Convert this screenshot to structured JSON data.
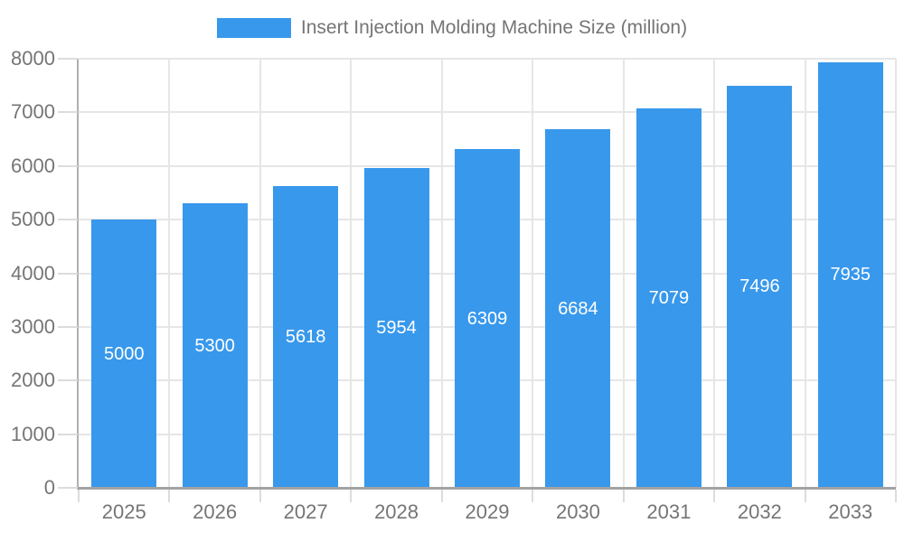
{
  "chart_data": {
    "type": "bar",
    "title": "",
    "categories": [
      "2025",
      "2026",
      "2027",
      "2028",
      "2029",
      "2030",
      "2031",
      "2032",
      "2033"
    ],
    "series": [
      {
        "name": "Insert Injection Molding Machine Size (million)",
        "values": [
          5000,
          5300,
          5618,
          5954,
          6309,
          6684,
          7079,
          7496,
          7935
        ]
      }
    ],
    "value_labels": [
      "5000",
      "5300",
      "5618",
      "5954",
      "6309",
      "6684",
      "7079",
      "7496",
      "7935"
    ],
    "xlabel": "",
    "ylabel": "",
    "ylim": [
      0,
      8000
    ],
    "ytick_step": 1000,
    "yticks": [
      "0",
      "1000",
      "2000",
      "3000",
      "4000",
      "5000",
      "6000",
      "7000",
      "8000"
    ],
    "grid": "both",
    "legend_position": "top-center",
    "colors": {
      "bar": "#3898EC",
      "grid_line": "#E6E6E6",
      "tick_line": "#DCDCDC",
      "axis_line_y": "#B0B0B0",
      "axis_line_x": "#A3A3A3",
      "axis_text": "#757575",
      "legend_text": "#757575",
      "bar_label_text": "#FFFFFF",
      "background": "#FFFFFF"
    }
  }
}
